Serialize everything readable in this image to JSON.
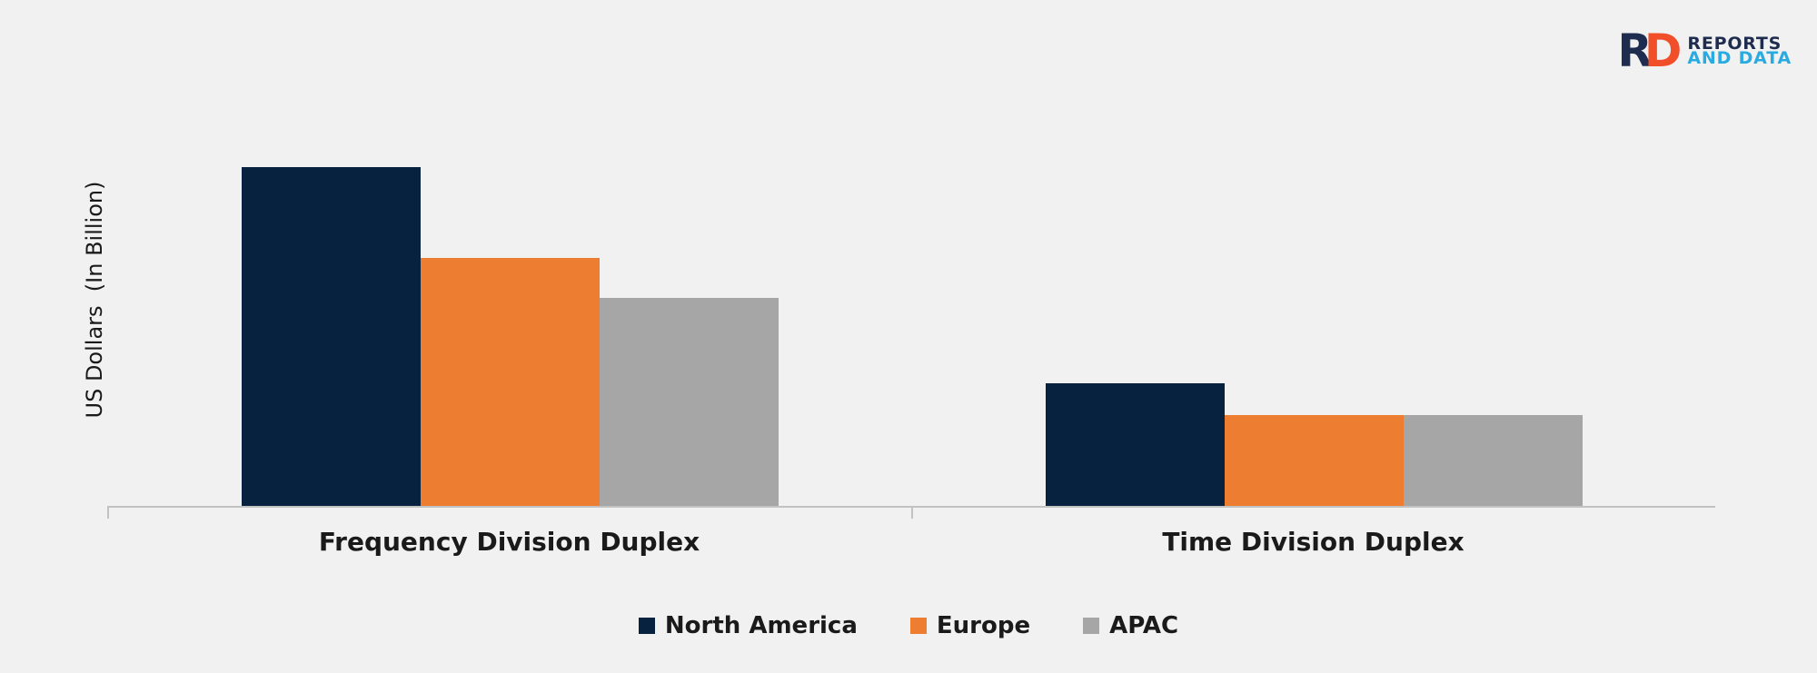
{
  "background_color": "#f1f1f1",
  "text_color": "#1a1a1a",
  "logo": {
    "mark_letter_1": "R",
    "mark_letter_2": "D",
    "text_line_1": "REPORTS",
    "text_line_2": "AND DATA",
    "colors": {
      "navy": "#1e2d4f",
      "orange": "#f04f2a",
      "cyan": "#29abe2"
    }
  },
  "chart_data": {
    "type": "bar",
    "title": "",
    "xlabel": "",
    "ylabel": "US Dollars  (In Billion)",
    "categories": [
      "Frequency Division Duplex",
      "Time Division Duplex"
    ],
    "series": [
      {
        "name": "North America",
        "color": "#06223f",
        "values": [
          100,
          36.4
        ]
      },
      {
        "name": "Europe",
        "color": "#ed7d31",
        "values": [
          73.3,
          27.0
        ]
      },
      {
        "name": "APAC",
        "color": "#a6a6a6",
        "values": [
          61.5,
          27.0
        ]
      }
    ],
    "value_note": "No numeric tick labels shown on chart; values are relative heights with tallest bar = 100",
    "ylim": [
      0,
      107
    ],
    "grid": false,
    "axis_color": "#c2c2c2",
    "legend_position": "bottom"
  }
}
